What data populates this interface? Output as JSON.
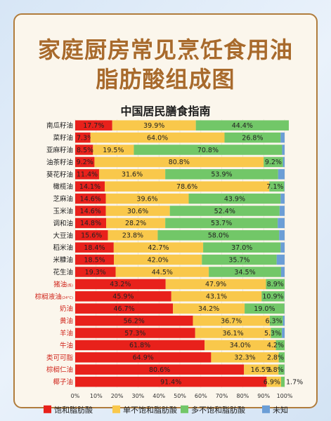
{
  "header": {
    "title_line1": "家庭厨房常见烹饪食用油",
    "title_line2": "脂肪酸组成图",
    "subtitle": "中国居民膳食指南"
  },
  "colors": {
    "saturated": "#e8211b",
    "mono": "#f9c84b",
    "poly": "#72c768",
    "unknown": "#6b9ed6",
    "label_plant": "#222222",
    "label_animal": "#d0261c"
  },
  "chart_data": {
    "type": "bar",
    "orientation": "horizontal",
    "stacked": true,
    "xlim": [
      0,
      100
    ],
    "x_ticks": [
      "0%",
      "10%",
      "20%",
      "30%",
      "40%",
      "50%",
      "60%",
      "70%",
      "80%",
      "90%",
      "100%"
    ],
    "categories": [
      {
        "name": "南瓜籽油",
        "sub": "",
        "group": "plant"
      },
      {
        "name": "菜籽油",
        "sub": "",
        "group": "plant"
      },
      {
        "name": "亚麻籽油",
        "sub": "",
        "group": "plant"
      },
      {
        "name": "油茶籽油",
        "sub": "",
        "group": "plant"
      },
      {
        "name": "葵花籽油",
        "sub": "",
        "group": "plant"
      },
      {
        "name": "橄榄油",
        "sub": "",
        "group": "plant"
      },
      {
        "name": "芝麻油",
        "sub": "",
        "group": "plant"
      },
      {
        "name": "玉米油",
        "sub": "",
        "group": "plant"
      },
      {
        "name": "调和油",
        "sub": "",
        "group": "plant"
      },
      {
        "name": "大豆油",
        "sub": "",
        "group": "plant"
      },
      {
        "name": "稻米油",
        "sub": "",
        "group": "plant"
      },
      {
        "name": "米糠油",
        "sub": "",
        "group": "plant"
      },
      {
        "name": "花生油",
        "sub": "",
        "group": "plant"
      },
      {
        "name": "猪油",
        "sub": "(炼)",
        "group": "animal"
      },
      {
        "name": "棕榈液油",
        "sub": "(24°C)",
        "group": "animal"
      },
      {
        "name": "奶油",
        "sub": "",
        "group": "animal"
      },
      {
        "name": "黄油",
        "sub": "",
        "group": "animal"
      },
      {
        "name": "羊油",
        "sub": "",
        "group": "animal"
      },
      {
        "name": "牛油",
        "sub": "",
        "group": "animal"
      },
      {
        "name": "类可可脂",
        "sub": "",
        "group": "animal"
      },
      {
        "name": "棕榈仁油",
        "sub": "",
        "group": "animal"
      },
      {
        "name": "椰子油",
        "sub": "",
        "group": "animal"
      }
    ],
    "series": [
      {
        "name": "饱和脂肪酸",
        "values": [
          17.7,
          7.3,
          8.5,
          9.2,
          11.4,
          14.1,
          14.6,
          14.6,
          14.8,
          15.6,
          18.4,
          18.5,
          19.3,
          43.2,
          45.9,
          46.7,
          56.2,
          57.3,
          61.8,
          64.9,
          80.6,
          91.4
        ]
      },
      {
        "name": "单不饱和脂肪酸",
        "values": [
          39.9,
          64.0,
          19.5,
          80.8,
          31.6,
          78.6,
          39.6,
          30.6,
          28.2,
          23.8,
          42.7,
          42.0,
          44.5,
          47.9,
          43.1,
          34.2,
          36.7,
          36.1,
          34.0,
          32.3,
          16.5,
          6.9
        ]
      },
      {
        "name": "多不饱和脂肪酸",
        "values": [
          44.4,
          26.8,
          70.8,
          9.2,
          53.9,
          7.1,
          43.9,
          52.4,
          53.7,
          58.0,
          37.0,
          35.7,
          34.5,
          8.9,
          10.9,
          19.0,
          6.3,
          5.3,
          4.2,
          2.8,
          2.8,
          1.7
        ]
      },
      {
        "name": "未知",
        "values": [
          0,
          1.9,
          1.2,
          0.8,
          3.1,
          0.2,
          1.9,
          2.4,
          3.3,
          2.6,
          1.9,
          3.8,
          1.7,
          0,
          0.1,
          0.1,
          0.8,
          1.3,
          0,
          0,
          0.1,
          0
        ]
      }
    ],
    "legend": {
      "placement": "bottom"
    }
  }
}
